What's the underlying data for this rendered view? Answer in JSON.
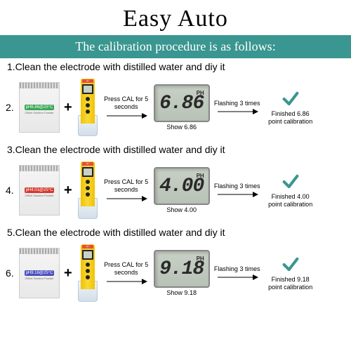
{
  "title": "Easy Auto",
  "banner": "The calibration procedure is as follows:",
  "clean_steps": [
    "1.Clean the electrode with distilled water and diy it",
    "3.Clean the electrode with distilled water and diy it",
    "5.Clean the electrode with distilled water and diy it"
  ],
  "rows": [
    {
      "num": "2.",
      "packet_label": "pH6.86@25°C",
      "packet_color": "#3aa656",
      "packet_sub": "250ml Solution Powder",
      "press": "Press CAL for 5 seconds",
      "lcd": "6.86",
      "show": "Show 6.86",
      "flash": "Flashing 3 times",
      "finished": "Finished 6.86 point calibration"
    },
    {
      "num": "4.",
      "packet_label": "pH4.01@25°C",
      "packet_color": "#d43a2e",
      "packet_sub": "250ml Solution Powder",
      "press": "Press CAL for 5 seconds",
      "lcd": "4.00",
      "show": "Show 4.00",
      "flash": "Flashing 3 times",
      "finished": "Finished 4.00 point calibration"
    },
    {
      "num": "6.",
      "packet_label": "pH9.18@25°C",
      "packet_color": "#4a4fbf",
      "packet_sub": "250ml Solution Powder",
      "press": "Press CAL for 5 seconds",
      "lcd": "9.18",
      "show": "Show 9.18",
      "flash": "Flashing 3 times",
      "finished": "Finished 9.18 point calibration"
    }
  ],
  "colors": {
    "banner_bg": "#3a9690",
    "check": "#3a9690",
    "meter_yellow": "#f7d937",
    "lcd_bg": "#c8d0c6"
  }
}
